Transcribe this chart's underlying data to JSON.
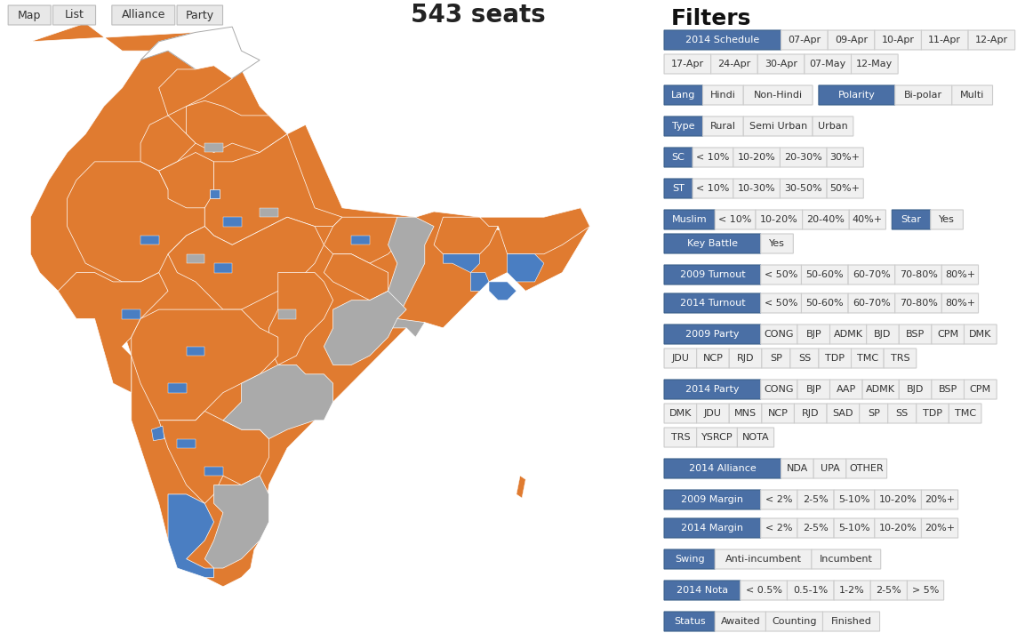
{
  "title": "543 seats",
  "filters_title": "Filters",
  "background_color": "#ffffff",
  "btn_blue_bg": "#4a6fa5",
  "btn_blue_text": "#ffffff",
  "btn_gray_bg": "#e8e8e8",
  "btn_gray_text": "#333333",
  "top_buttons_left": [
    "Map",
    "List"
  ],
  "top_buttons_right": [
    "Alliance",
    "Party"
  ],
  "filter_rows": [
    {
      "label": "2014 Schedule",
      "label_blue": true,
      "items": [
        "07-Apr",
        "09-Apr",
        "10-Apr",
        "11-Apr",
        "12-Apr"
      ]
    },
    {
      "label": null,
      "label_blue": false,
      "items": [
        "17-Apr",
        "24-Apr",
        "30-Apr",
        "07-May",
        "12-May"
      ]
    },
    {
      "label": "Lang",
      "label_blue": true,
      "items": [
        "Hindi",
        "Non-Hindi"
      ],
      "extra_label": "Polarity",
      "extra_label_blue": true,
      "extra_items": [
        "Bi-polar",
        "Multi"
      ]
    },
    {
      "label": "Type",
      "label_blue": true,
      "items": [
        "Rural",
        "Semi Urban",
        "Urban"
      ]
    },
    {
      "label": "SC",
      "label_blue": true,
      "items": [
        "< 10%",
        "10-20%",
        "20-30%",
        "30%+"
      ]
    },
    {
      "label": "ST",
      "label_blue": true,
      "items": [
        "< 10%",
        "10-30%",
        "30-50%",
        "50%+"
      ]
    },
    {
      "label": "Muslim",
      "label_blue": true,
      "items": [
        "< 10%",
        "10-20%",
        "20-40%",
        "40%+"
      ],
      "extra_label": "Star",
      "extra_label_blue": true,
      "extra_items": [
        "Yes"
      ]
    },
    {
      "label": "Key Battle",
      "label_blue": true,
      "items": [
        "Yes"
      ]
    },
    {
      "label": "2009 Turnout",
      "label_blue": true,
      "items": [
        "< 50%",
        "50-60%",
        "60-70%",
        "70-80%",
        "80%+"
      ]
    },
    {
      "label": "2014 Turnout",
      "label_blue": true,
      "items": [
        "< 50%",
        "50-60%",
        "60-70%",
        "70-80%",
        "80%+"
      ]
    },
    {
      "label": "2009 Party",
      "label_blue": true,
      "items": [
        "CONG",
        "BJP",
        "ADMK",
        "BJD",
        "BSP",
        "CPM",
        "DMK"
      ]
    },
    {
      "label": null,
      "label_blue": false,
      "items": [
        "JDU",
        "NCP",
        "RJD",
        "SP",
        "SS",
        "TDP",
        "TMC",
        "TRS"
      ]
    },
    {
      "label": "2014 Party",
      "label_blue": true,
      "items": [
        "CONG",
        "BJP",
        "AAP",
        "ADMK",
        "BJD",
        "BSP",
        "CPM"
      ]
    },
    {
      "label": null,
      "label_blue": false,
      "items": [
        "DMK",
        "JDU",
        "MNS",
        "NCP",
        "RJD",
        "SAD",
        "SP",
        "SS",
        "TDP",
        "TMC"
      ]
    },
    {
      "label": null,
      "label_blue": false,
      "items": [
        "TRS",
        "YSRCP",
        "NOTA"
      ]
    },
    {
      "label": "2014 Alliance",
      "label_blue": true,
      "items": [
        "NDA",
        "UPA",
        "OTHER"
      ]
    },
    {
      "label": "2009 Margin",
      "label_blue": true,
      "items": [
        "< 2%",
        "2-5%",
        "5-10%",
        "10-20%",
        "20%+"
      ]
    },
    {
      "label": "2014 Margin",
      "label_blue": true,
      "items": [
        "< 2%",
        "2-5%",
        "5-10%",
        "10-20%",
        "20%+"
      ]
    },
    {
      "label": "Swing",
      "label_blue": true,
      "items": [
        "Anti-incumbent",
        "Incumbent"
      ]
    },
    {
      "label": "2014 Nota",
      "label_blue": true,
      "items": [
        "< 0.5%",
        "0.5-1%",
        "1-2%",
        "2-5%",
        "> 5%"
      ]
    },
    {
      "label": "Status",
      "label_blue": true,
      "items": [
        "Awaited",
        "Counting",
        "Finished"
      ]
    }
  ],
  "map_colors": {
    "orange": "#e07b30",
    "blue": "#4a7ec2",
    "gray": "#aaaaaa",
    "light_gray": "#cccccc",
    "white": "#ffffff"
  }
}
